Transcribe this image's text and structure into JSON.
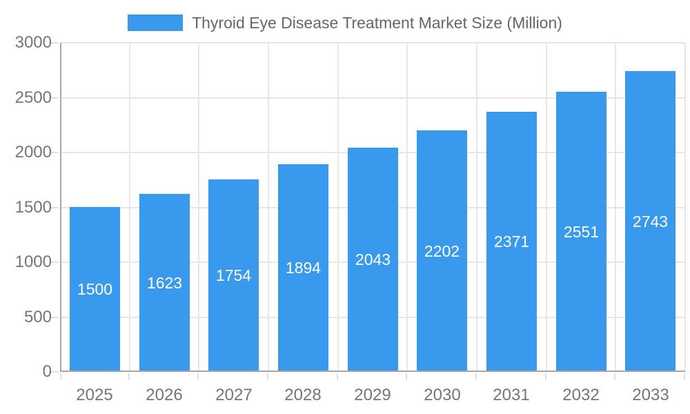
{
  "legend": {
    "label": "Thyroid Eye Disease Treatment Market Size (Million)"
  },
  "chart_data": {
    "type": "bar",
    "title": "Thyroid Eye Disease Treatment Market Size (Million)",
    "categories": [
      "2025",
      "2026",
      "2027",
      "2028",
      "2029",
      "2030",
      "2031",
      "2032",
      "2033"
    ],
    "values": [
      1500,
      1623,
      1754,
      1894,
      2043,
      2202,
      2371,
      2551,
      2743
    ],
    "xlabel": "",
    "ylabel": "",
    "ylim": [
      0,
      3000
    ],
    "ytick_step": 500,
    "ytick_labels": [
      "0",
      "500",
      "1000",
      "1500",
      "2000",
      "2500",
      "3000"
    ],
    "grid": true,
    "legend_position": "top",
    "value_label_position": "inside-center",
    "colors": {
      "bar": "#3999EC",
      "grid": "#E6E6E6",
      "axis": "#A6A6A6",
      "tick": "#E0E0E0",
      "tick_label": "#757575",
      "legend_label": "#666666",
      "value_label": "#FFFFFF"
    }
  }
}
